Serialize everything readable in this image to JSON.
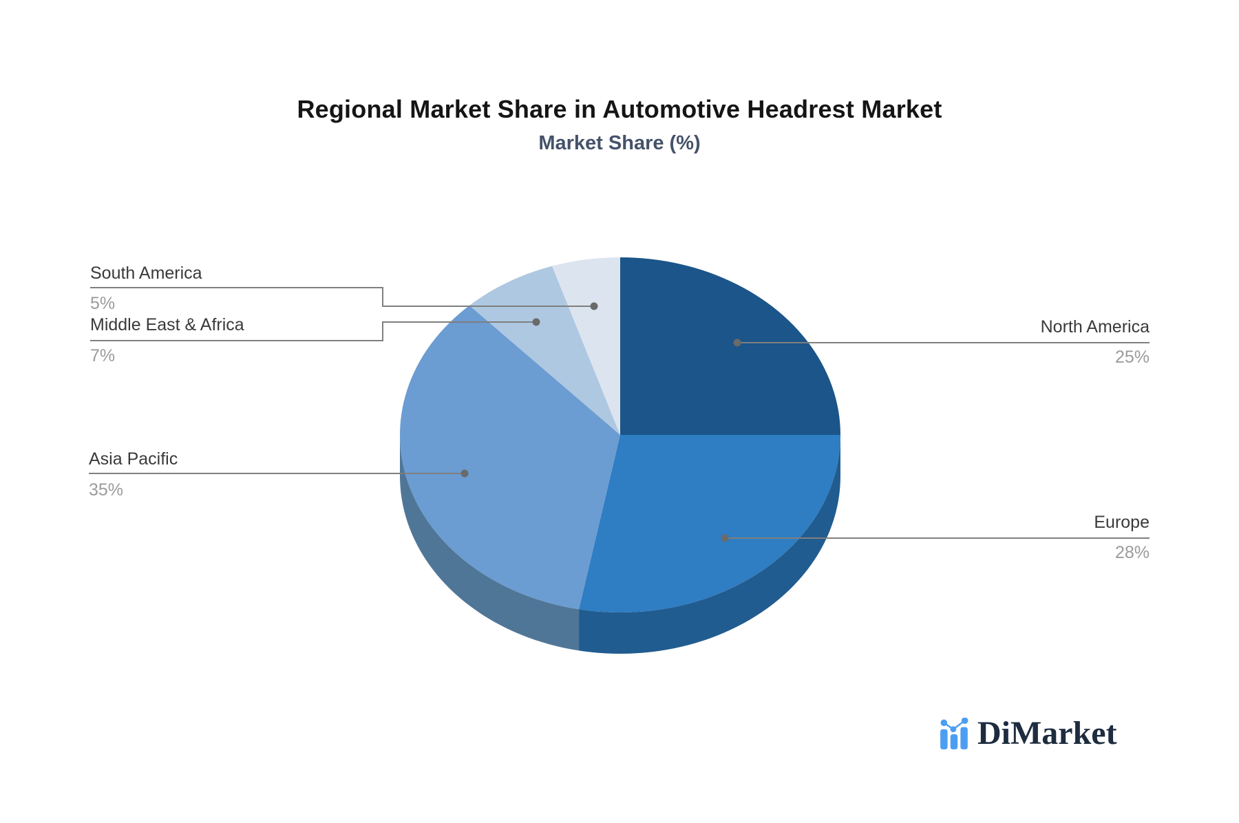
{
  "title": "Regional Market Share in Automotive Headrest Market",
  "subtitle": "Market Share (%)",
  "chart_data": {
    "type": "pie",
    "style": "3d",
    "title": "Regional Market Share in Automotive Headrest Market",
    "value_label": "Market Share (%)",
    "unit": "%",
    "start_angle_deg": 0,
    "direction": "clockwise",
    "slices": [
      {
        "label": "North America",
        "value": 25,
        "pct_label": "25%",
        "color": "#1b5589",
        "shade": "#174a77"
      },
      {
        "label": "Europe",
        "value": 28,
        "pct_label": "28%",
        "color": "#2f7dc2",
        "shade": "#215c90"
      },
      {
        "label": "Asia Pacific",
        "value": 35,
        "pct_label": "35%",
        "color": "#6b9cd2",
        "shade": "#507697"
      },
      {
        "label": "Middle East & Africa",
        "value": 7,
        "pct_label": "7%",
        "color": "#aec8e2",
        "shade": "#8fb4d6"
      },
      {
        "label": "South America",
        "value": 5,
        "pct_label": "5%",
        "color": "#dce4ef",
        "shade": "#c3cfe0"
      }
    ],
    "leader_color": "#7f7f7f",
    "dot_color": "#6a6a6a",
    "legend": "none",
    "labels_position": "callouts-outside"
  },
  "text_colors": {
    "title": "#151515",
    "subtitle": "#44526a",
    "label": "#3a3a3a",
    "percent": "#9b9b9b"
  },
  "logo": {
    "text": "DiMarket",
    "icon": "bar-chart-logo-icon",
    "text_color": "#1d2c3e",
    "accent": "#4d9ef2"
  }
}
